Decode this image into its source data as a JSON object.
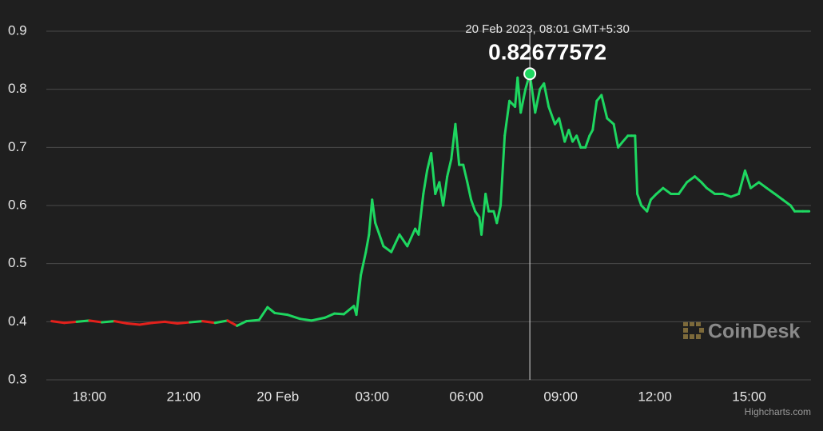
{
  "chart_data": {
    "type": "line",
    "x": [
      -7.2,
      -6.8,
      -6.4,
      -6.0,
      -5.6,
      -5.2,
      -4.8,
      -4.4,
      -4.0,
      -3.6,
      -3.2,
      -2.8,
      -2.4,
      -2.0,
      -1.6,
      -1.3,
      -1.0,
      -0.6,
      -0.33,
      -0.1,
      0.3,
      0.7,
      1.07,
      1.5,
      1.8,
      2.1,
      2.42,
      2.5,
      2.64,
      2.8,
      2.9,
      3.0,
      3.1,
      3.36,
      3.61,
      3.87,
      4.12,
      4.37,
      4.48,
      4.63,
      4.75,
      4.88,
      5.01,
      5.14,
      5.26,
      5.39,
      5.52,
      5.65,
      5.77,
      5.9,
      6.03,
      6.15,
      6.28,
      6.41,
      6.48,
      6.61,
      6.71,
      6.87,
      6.97,
      7.09,
      7.22,
      7.37,
      7.55,
      7.63,
      7.73,
      7.88,
      8.02,
      8.19,
      8.34,
      8.47,
      8.62,
      8.82,
      8.95,
      9.13,
      9.26,
      9.38,
      9.51,
      9.64,
      9.79,
      9.92,
      10.02,
      10.15,
      10.3,
      10.48,
      10.69,
      10.83,
      10.98,
      11.14,
      11.26,
      11.37,
      11.44,
      11.57,
      11.75,
      11.87,
      12.05,
      12.26,
      12.51,
      12.76,
      13.02,
      13.27,
      13.48,
      13.65,
      13.91,
      14.16,
      14.42,
      14.67,
      14.87,
      15.05,
      15.31,
      15.56,
      15.82,
      16.07,
      16.32,
      16.45,
      16.71,
      16.91
    ],
    "values": [
      0.401,
      0.398,
      0.4,
      0.402,
      0.399,
      0.401,
      0.397,
      0.395,
      0.398,
      0.4,
      0.397,
      0.399,
      0.401,
      0.398,
      0.402,
      0.393,
      0.401,
      0.403,
      0.425,
      0.415,
      0.412,
      0.405,
      0.402,
      0.407,
      0.414,
      0.413,
      0.427,
      0.412,
      0.48,
      0.52,
      0.55,
      0.61,
      0.57,
      0.53,
      0.52,
      0.55,
      0.53,
      0.56,
      0.55,
      0.62,
      0.66,
      0.69,
      0.62,
      0.64,
      0.6,
      0.65,
      0.68,
      0.74,
      0.67,
      0.67,
      0.64,
      0.61,
      0.59,
      0.58,
      0.55,
      0.62,
      0.59,
      0.59,
      0.57,
      0.6,
      0.72,
      0.78,
      0.77,
      0.82,
      0.76,
      0.8,
      0.82677572,
      0.76,
      0.8,
      0.81,
      0.77,
      0.74,
      0.75,
      0.71,
      0.73,
      0.71,
      0.72,
      0.7,
      0.7,
      0.72,
      0.73,
      0.78,
      0.79,
      0.75,
      0.74,
      0.7,
      0.71,
      0.72,
      0.72,
      0.72,
      0.62,
      0.6,
      0.59,
      0.61,
      0.62,
      0.63,
      0.62,
      0.62,
      0.64,
      0.65,
      0.64,
      0.63,
      0.62,
      0.62,
      0.615,
      0.62,
      0.66,
      0.63,
      0.64,
      0.63,
      0.62,
      0.61,
      0.6,
      0.59,
      0.59,
      0.59
    ],
    "color": "#1ed760",
    "down_color": "#e3211c",
    "xlim": [
      -7.37,
      16.97
    ],
    "xticks": [
      {
        "value": -6,
        "label": "18:00"
      },
      {
        "value": -3,
        "label": "21:00"
      },
      {
        "value": 0,
        "label": "20 Feb"
      },
      {
        "value": 3,
        "label": "03:00"
      },
      {
        "value": 6,
        "label": "06:00"
      },
      {
        "value": 9,
        "label": "09:00"
      },
      {
        "value": 12,
        "label": "12:00"
      },
      {
        "value": 15,
        "label": "15:00"
      }
    ],
    "ylim": [
      0.3,
      0.9
    ],
    "yticks": [
      0.3,
      0.4,
      0.5,
      0.6,
      0.7,
      0.8,
      0.9
    ],
    "grid": true,
    "tooltip": {
      "label": "20 Feb 2023, 08:01 GMT+5:30",
      "x": 8.02,
      "value": 0.82677572
    },
    "watermark": "CoinDesk",
    "credit": "Highcharts.com"
  }
}
